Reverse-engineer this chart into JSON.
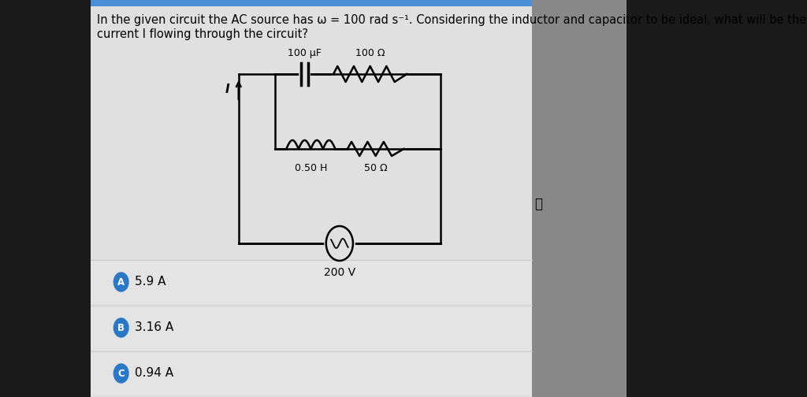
{
  "question_line1": "In the given circuit the AC source has ω = 100 rad s⁻¹. Considering the inductor and capacitor to be ideal, what will be the",
  "question_line2": "current I flowing through the circuit?",
  "left_dark_color": "#1a1a1a",
  "right_dark_color": "#888888",
  "panel_color": "#e0e0e0",
  "top_bar_color": "#4a90d9",
  "label_cap": "100 μF",
  "label_res1": "100 Ω",
  "label_ind": "0.50 H",
  "label_res2": "50 Ω",
  "label_source": "200 V",
  "label_current": "I",
  "options": [
    {
      "letter": "A",
      "text": "5.9 A",
      "color": "#2979c8"
    },
    {
      "letter": "B",
      "text": "3.16 A",
      "color": "#2979c8"
    },
    {
      "letter": "C",
      "text": "0.94 A",
      "color": "#2979c8"
    }
  ],
  "font_size_question": 10.5,
  "option_box_color": "#e8e8e8",
  "option_separator_color": "#cccccc"
}
